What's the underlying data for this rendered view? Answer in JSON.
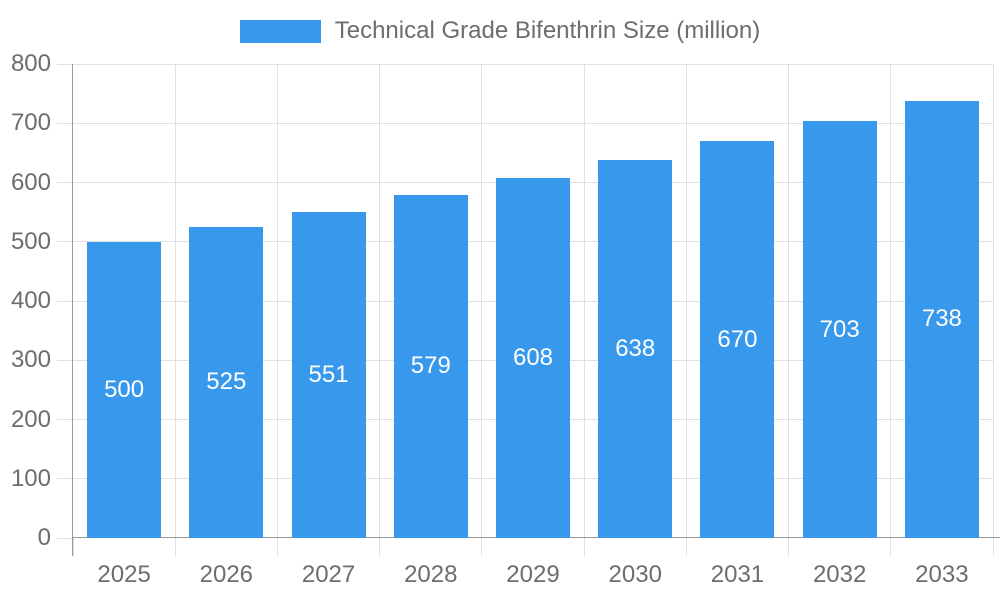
{
  "chart_data": {
    "type": "bar",
    "title": "",
    "legend": {
      "label": "Technical Grade Bifenthrin Size (million)",
      "position": "top"
    },
    "categories": [
      "2025",
      "2026",
      "2027",
      "2028",
      "2029",
      "2030",
      "2031",
      "2032",
      "2033"
    ],
    "values": [
      500,
      525,
      551,
      579,
      608,
      638,
      670,
      703,
      738
    ],
    "series": [
      {
        "name": "Technical Grade Bifenthrin Size (million)",
        "values": [
          500,
          525,
          551,
          579,
          608,
          638,
          670,
          703,
          738
        ]
      }
    ],
    "xlabel": "",
    "ylabel": "",
    "ylim": [
      0,
      800
    ],
    "yticks": [
      0,
      100,
      200,
      300,
      400,
      500,
      600,
      700,
      800
    ],
    "grid": true,
    "value_labels_shown": true,
    "colors": {
      "bar": "#3898EC",
      "bar_value_label": "#FFFFFF",
      "axis_text": "#6D6D6D",
      "gridline": "#E0E0E0",
      "axis_line": "#9A9A9A",
      "background": "#FFFFFF"
    }
  }
}
